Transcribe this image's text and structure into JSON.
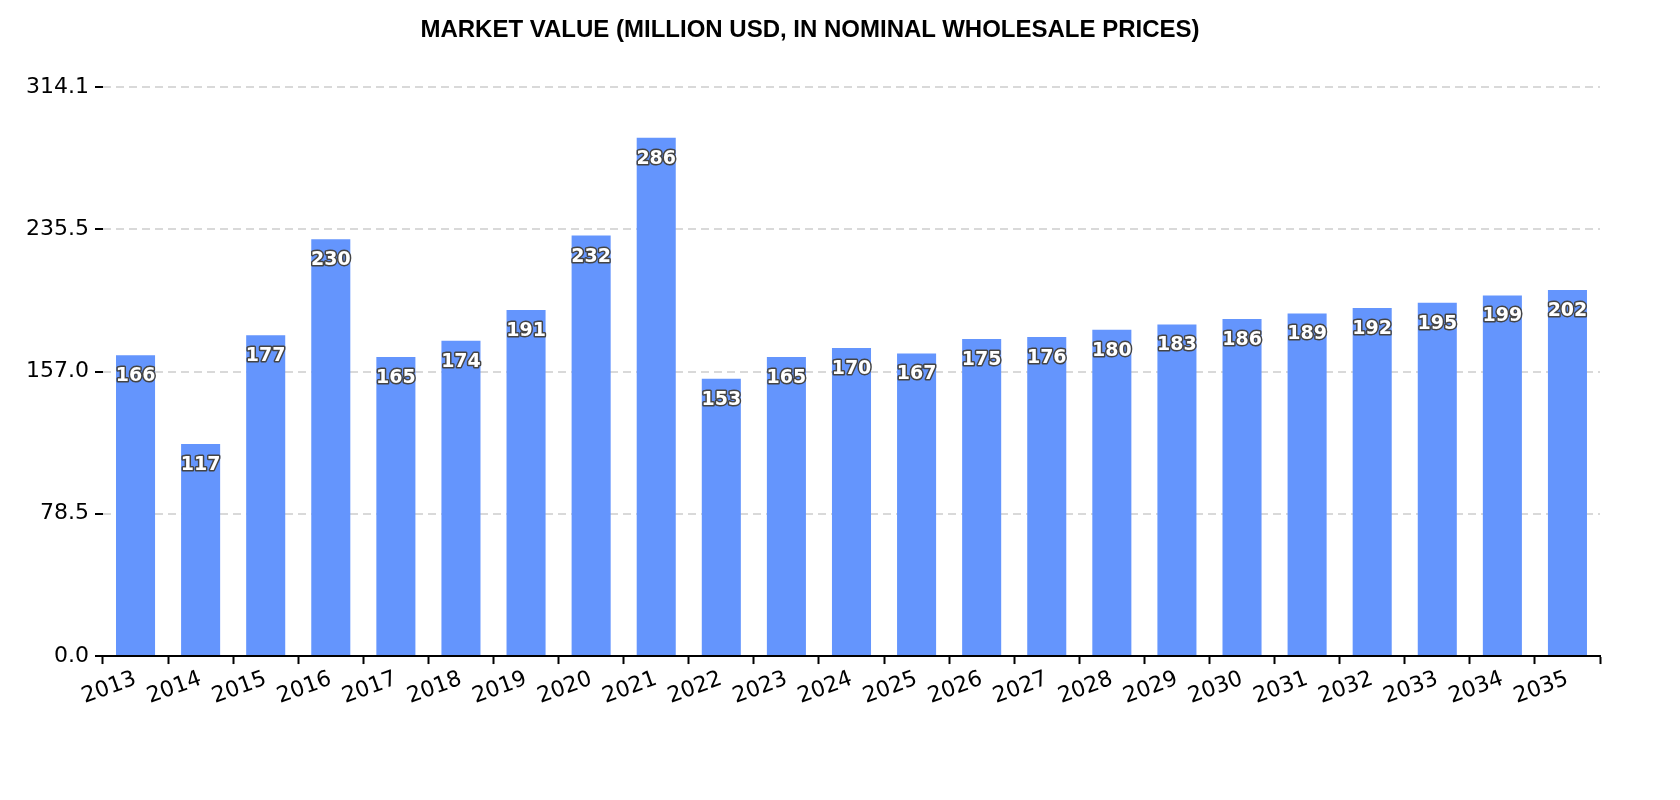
{
  "chart_data": {
    "type": "bar",
    "title": "MARKET VALUE (MILLION USD, IN NOMINAL WHOLESALE PRICES)",
    "categories": [
      "2013",
      "2014",
      "2015",
      "2016",
      "2017",
      "2018",
      "2019",
      "2020",
      "2021",
      "2022",
      "2023",
      "2024",
      "2025",
      "2026",
      "2027",
      "2028",
      "2029",
      "2030",
      "2031",
      "2032",
      "2033",
      "2034",
      "2035"
    ],
    "values": [
      166,
      117,
      177,
      230,
      165,
      174,
      191,
      232,
      286,
      153,
      165,
      170,
      167,
      175,
      176,
      180,
      183,
      186,
      189,
      192,
      195,
      199,
      202
    ],
    "color": "#6495fd",
    "ylim": [
      0,
      314.1
    ],
    "yticks": [
      {
        "value": 0,
        "label": "0.0"
      },
      78.5,
      {
        "value": 157,
        "label": "157.0"
      },
      235.5,
      314.1
    ],
    "grid": "y",
    "data_labels": true
  }
}
